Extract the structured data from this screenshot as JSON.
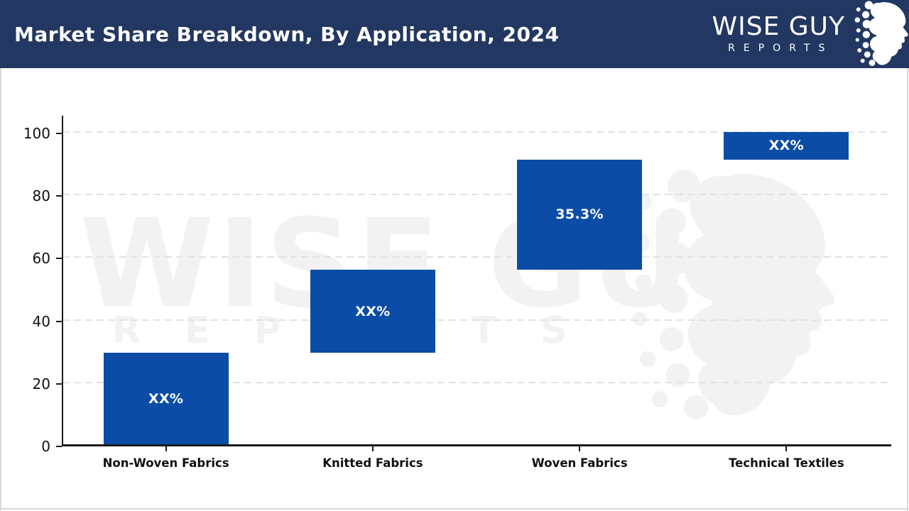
{
  "header": {
    "title": "Market Share Breakdown, By Application, 2024",
    "logo": {
      "line1": "WISE GUY",
      "line2": "REPORTS"
    }
  },
  "watermark": {
    "line1": "WISE GUY",
    "line2": "REPORTS"
  },
  "chart_data": {
    "type": "bar",
    "subtype": "waterfall",
    "title": "Market Share Breakdown, By Application, 2024",
    "categories": [
      "Non-Woven Fabrics",
      "Knitted Fabrics",
      "Woven Fabrics",
      "Technical Textiles"
    ],
    "bars": [
      {
        "category": "Non-Woven Fabrics",
        "label": "XX%",
        "start": 0,
        "end": 29.5
      },
      {
        "category": "Knitted Fabrics",
        "label": "XX%",
        "start": 29.5,
        "end": 56.0
      },
      {
        "category": "Woven Fabrics",
        "label": "35.3%",
        "start": 56.0,
        "end": 91.3
      },
      {
        "category": "Technical Textiles",
        "label": "XX%",
        "start": 91.3,
        "end": 100
      }
    ],
    "xlabel": "",
    "ylabel": "",
    "yticks": [
      0,
      20,
      40,
      60,
      80,
      100
    ],
    "ylim": [
      0,
      104.8
    ],
    "grid": "horizontal-dashed",
    "legend": "none",
    "bar_color": "#0b4da6",
    "bar_label_color": "#ffffff"
  },
  "colors": {
    "header_bg": "#223862",
    "bar": "#0b4da6",
    "watermark": "#f2f2f2",
    "gridline": "#e2e2e2",
    "axis": "#1a1a1a"
  }
}
